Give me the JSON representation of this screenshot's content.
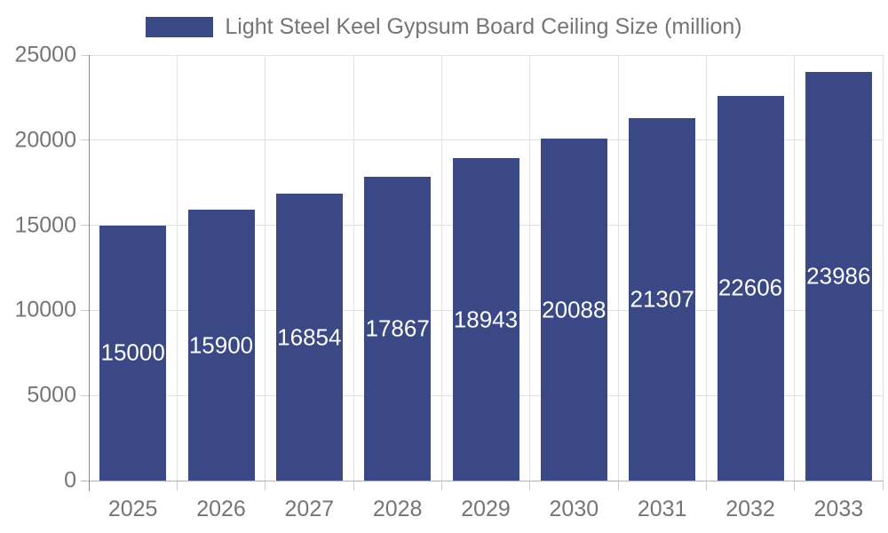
{
  "chart_data": {
    "type": "bar",
    "title": "",
    "legend": "Light Steel Keel Gypsum Board Ceiling Size (million)",
    "categories": [
      "2025",
      "2026",
      "2027",
      "2028",
      "2029",
      "2030",
      "2031",
      "2032",
      "2033"
    ],
    "values": [
      15000,
      15900,
      16854,
      17867,
      18943,
      20088,
      21307,
      22606,
      23986
    ],
    "xlabel": "",
    "ylabel": "",
    "ylim": [
      0,
      25000
    ],
    "ytick_step": 5000,
    "yticks": [
      "0",
      "5000",
      "10000",
      "15000",
      "20000",
      "25000"
    ],
    "grid": "on",
    "legend_position": "top-center",
    "colors": {
      "bar": "#3a4885",
      "grid": "#e2e2e6",
      "y_axis_line": "#888888",
      "x_axis_line": "#b3b3b3",
      "tick": "#cccccc",
      "axis_text": "#757575",
      "bar_label_text": "#ffffff",
      "background": "#ffffff"
    }
  }
}
